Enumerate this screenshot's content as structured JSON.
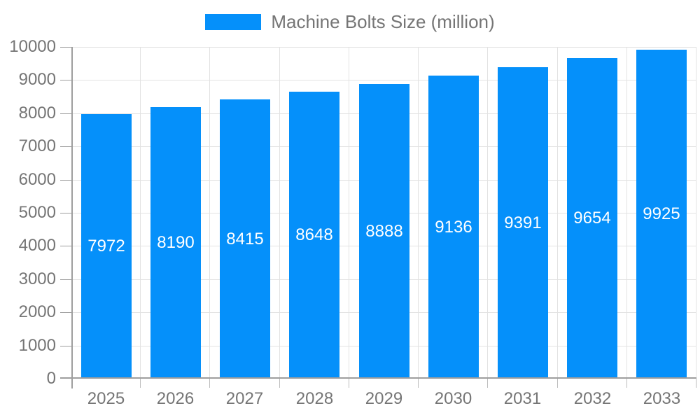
{
  "legend": {
    "label": "Machine Bolts Size (million)"
  },
  "chart_data": {
    "type": "bar",
    "title": "Machine Bolts Size (million)",
    "categories": [
      "2025",
      "2026",
      "2027",
      "2028",
      "2029",
      "2030",
      "2031",
      "2032",
      "2033"
    ],
    "values": [
      7972,
      8190,
      8415,
      8648,
      8888,
      9136,
      9391,
      9654,
      9925
    ],
    "xlabel": "",
    "ylabel": "",
    "ylim": [
      0,
      10000
    ],
    "ytick_step": 1000,
    "ytick_labels": [
      "0",
      "1000",
      "2000",
      "3000",
      "4000",
      "5000",
      "6000",
      "7000",
      "8000",
      "9000",
      "10000"
    ],
    "grid": true,
    "legend_position": "top-center",
    "bar_value_labels_shown": true,
    "colors": {
      "bar": "#0590FA",
      "grid": "#E2E2E2",
      "axis": "#9E9E9E",
      "tick_text": "#757575",
      "bar_label_text": "#FFFFFF",
      "background": "#FFFFFF"
    }
  }
}
